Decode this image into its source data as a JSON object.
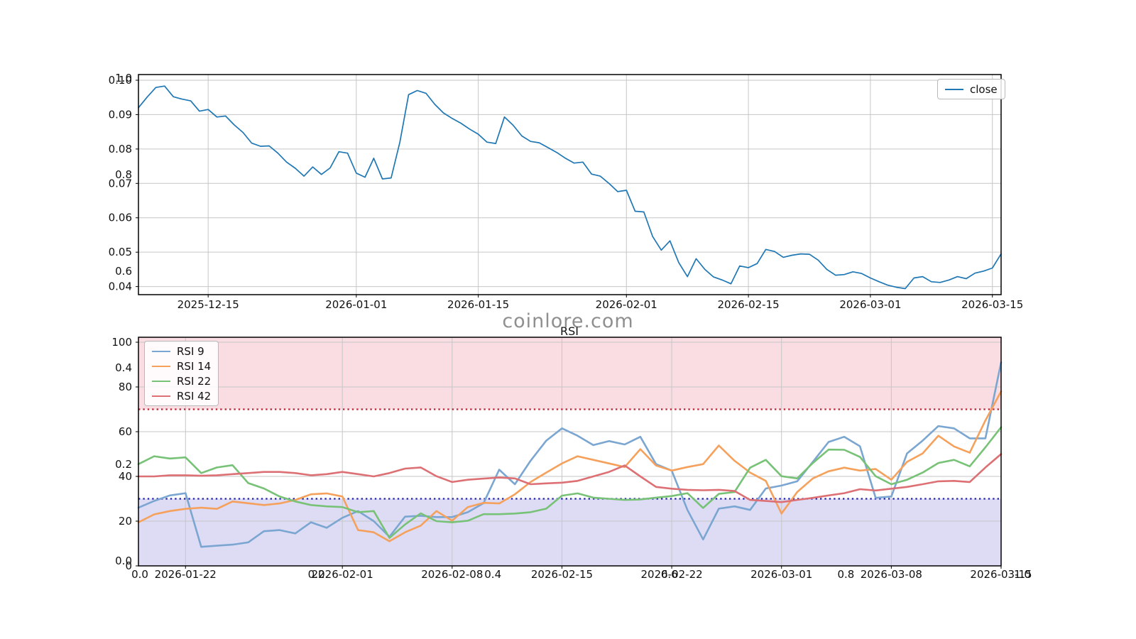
{
  "watermark": "coinlore.com",
  "overlay_axis": {
    "left_labels": [
      "1.0",
      "0.8",
      "0.6",
      "0.4",
      "0.2",
      "0.0"
    ],
    "bottom_labels": [
      "0.0",
      "0.2",
      "0.4",
      "0.6",
      "0.8",
      "1.0"
    ]
  },
  "chart_data": [
    {
      "type": "line",
      "title": "",
      "start_date": "2025-12-07",
      "grid": true,
      "legend_position": "upper right",
      "x_tick_labels": [
        "2025-12-15",
        "2026-01-01",
        "2026-01-15",
        "2026-02-01",
        "2026-02-15",
        "2026-03-01",
        "2026-03-15"
      ],
      "x_tick_days": [
        8,
        25,
        39,
        56,
        70,
        84,
        98
      ],
      "y_tick_labels": [
        "0.04",
        "0.05",
        "0.06",
        "0.07",
        "0.08",
        "0.09",
        "0.10"
      ],
      "y_tick_values": [
        0.04,
        0.05,
        0.06,
        0.07,
        0.08,
        0.09,
        0.1
      ],
      "ylim": [
        0.03765,
        0.10165
      ],
      "series": [
        {
          "name": "close",
          "color": "#1f77b4",
          "width": 1.7,
          "values": [
            0.092,
            0.0951,
            0.0979,
            0.0983,
            0.0952,
            0.0945,
            0.094,
            0.091,
            0.0915,
            0.0893,
            0.0896,
            0.087,
            0.0848,
            0.0817,
            0.0808,
            0.0809,
            0.0788,
            0.0762,
            0.0744,
            0.0721,
            0.0748,
            0.0726,
            0.0745,
            0.0792,
            0.0788,
            0.073,
            0.0718,
            0.0773,
            0.0713,
            0.0716,
            0.082,
            0.0958,
            0.097,
            0.0962,
            0.093,
            0.0905,
            0.0889,
            0.0875,
            0.0858,
            0.0843,
            0.082,
            0.0816,
            0.0893,
            0.0869,
            0.0838,
            0.0822,
            0.0818,
            0.0804,
            0.079,
            0.0773,
            0.0759,
            0.0762,
            0.0727,
            0.0721,
            0.07,
            0.0676,
            0.068,
            0.0619,
            0.0617,
            0.0546,
            0.0506,
            0.0533,
            0.047,
            0.0429,
            0.0481,
            0.045,
            0.0428,
            0.0419,
            0.0408,
            0.046,
            0.0455,
            0.0467,
            0.0508,
            0.0502,
            0.0485,
            0.0491,
            0.0495,
            0.0494,
            0.0477,
            0.045,
            0.0433,
            0.0435,
            0.0443,
            0.0438,
            0.0425,
            0.0414,
            0.0404,
            0.0398,
            0.0394,
            0.0425,
            0.0429,
            0.0414,
            0.0412,
            0.0419,
            0.0429,
            0.0423,
            0.0439,
            0.0445,
            0.0454,
            0.0495
          ]
        }
      ]
    },
    {
      "type": "line",
      "title": "RSI",
      "start_date": "2026-01-19",
      "grid": true,
      "legend_position": "upper left",
      "x_tick_labels": [
        "2026-01-22",
        "2026-02-01",
        "2026-02-08",
        "2026-02-15",
        "2026-02-22",
        "2026-03-01",
        "2026-03-08",
        "2026-03-15"
      ],
      "x_tick_days": [
        3,
        13,
        20,
        27,
        34,
        41,
        48,
        55
      ],
      "y_tick_labels": [
        "0",
        "20",
        "40",
        "60",
        "80",
        "100"
      ],
      "y_tick_values": [
        0,
        20,
        40,
        60,
        80,
        100
      ],
      "ylim": [
        0,
        102.22
      ],
      "overbought_level": 70,
      "oversold_level": 30,
      "bands": [
        {
          "name": "overbought-zone",
          "from": 70,
          "to": 102.22,
          "color": "#fadde2"
        },
        {
          "name": "oversold-zone",
          "from": 0,
          "to": 30,
          "color": "#dedcf5"
        }
      ],
      "threshold_lines": [
        {
          "value": 70,
          "color": "#bb2233",
          "style": "dotted"
        },
        {
          "value": 30,
          "color": "#2222aa",
          "style": "dotted"
        }
      ],
      "series": [
        {
          "name": "RSI 9",
          "color": "#7aa6d1",
          "width": 2.6,
          "values": [
            26,
            29,
            31.5,
            32.5,
            8.5,
            9,
            9.5,
            10.5,
            15.5,
            16,
            14.5,
            19.5,
            17,
            21.5,
            24.5,
            20,
            13,
            22,
            22.4,
            21.8,
            21.8,
            24,
            28,
            43,
            36.5,
            47,
            56,
            61.5,
            58.2,
            54,
            55.8,
            54.3,
            57.7,
            45.5,
            42.6,
            25,
            11.8,
            25.6,
            26.6,
            25,
            34.6,
            35.9,
            37.8,
            46.5,
            55.4,
            57.7,
            53.5,
            30.4,
            31,
            50.3,
            56,
            62.5,
            61.5,
            57,
            57,
            91
          ]
        },
        {
          "name": "RSI 14",
          "color": "#f5a15c",
          "width": 2.6,
          "values": [
            19.5,
            23,
            24.5,
            25.5,
            26,
            25.5,
            28.8,
            28,
            27.2,
            27.9,
            29.5,
            32,
            32.4,
            31,
            16,
            15,
            11,
            15,
            18,
            24.5,
            20.2,
            26.3,
            28.2,
            27.9,
            32,
            37.5,
            41.7,
            45.8,
            49,
            47.4,
            45.8,
            44.2,
            52.2,
            44.9,
            42.6,
            44.2,
            45.5,
            53.8,
            47,
            41.7,
            38,
            23.4,
            33,
            39.1,
            42.3,
            43.9,
            42.6,
            43.3,
            38.5,
            46.5,
            50.3,
            58.2,
            53.4,
            50.6,
            65,
            78
          ]
        },
        {
          "name": "RSI 22",
          "color": "#77c277",
          "width": 2.6,
          "values": [
            45.5,
            49,
            48,
            48.5,
            41.5,
            44,
            45,
            37,
            34.6,
            31,
            28.8,
            27.2,
            26.6,
            26.3,
            24,
            24.5,
            12.5,
            18.5,
            23.5,
            20,
            19.5,
            20.2,
            23.1,
            23.1,
            23.4,
            24,
            25.6,
            31.4,
            32.4,
            30.5,
            30,
            29.5,
            29.7,
            30.5,
            31.2,
            32.5,
            25.9,
            32.2,
            33,
            43.9,
            47.4,
            40.1,
            39.1,
            46,
            52,
            51.9,
            48.7,
            40.1,
            36.5,
            38.5,
            41.7,
            46,
            47.4,
            44.5,
            53,
            62
          ]
        },
        {
          "name": "RSI 42",
          "color": "#dd7074",
          "width": 2.6,
          "values": [
            40,
            40,
            40.5,
            40.5,
            40.3,
            40.5,
            41,
            41.5,
            42,
            42,
            41.5,
            40.5,
            41,
            42,
            41,
            40,
            41.5,
            43.5,
            44,
            40.1,
            37.5,
            38.5,
            39,
            39.5,
            39.1,
            36.5,
            36.9,
            37.2,
            38,
            40,
            42,
            44.9,
            40,
            35.3,
            34.5,
            34,
            33.8,
            34,
            33.5,
            29.5,
            29,
            28.5,
            29.5,
            30.4,
            31.5,
            32.5,
            34.3,
            33.7,
            34.5,
            35.3,
            36.5,
            37.8,
            38,
            37.5,
            44,
            50
          ]
        }
      ]
    }
  ]
}
